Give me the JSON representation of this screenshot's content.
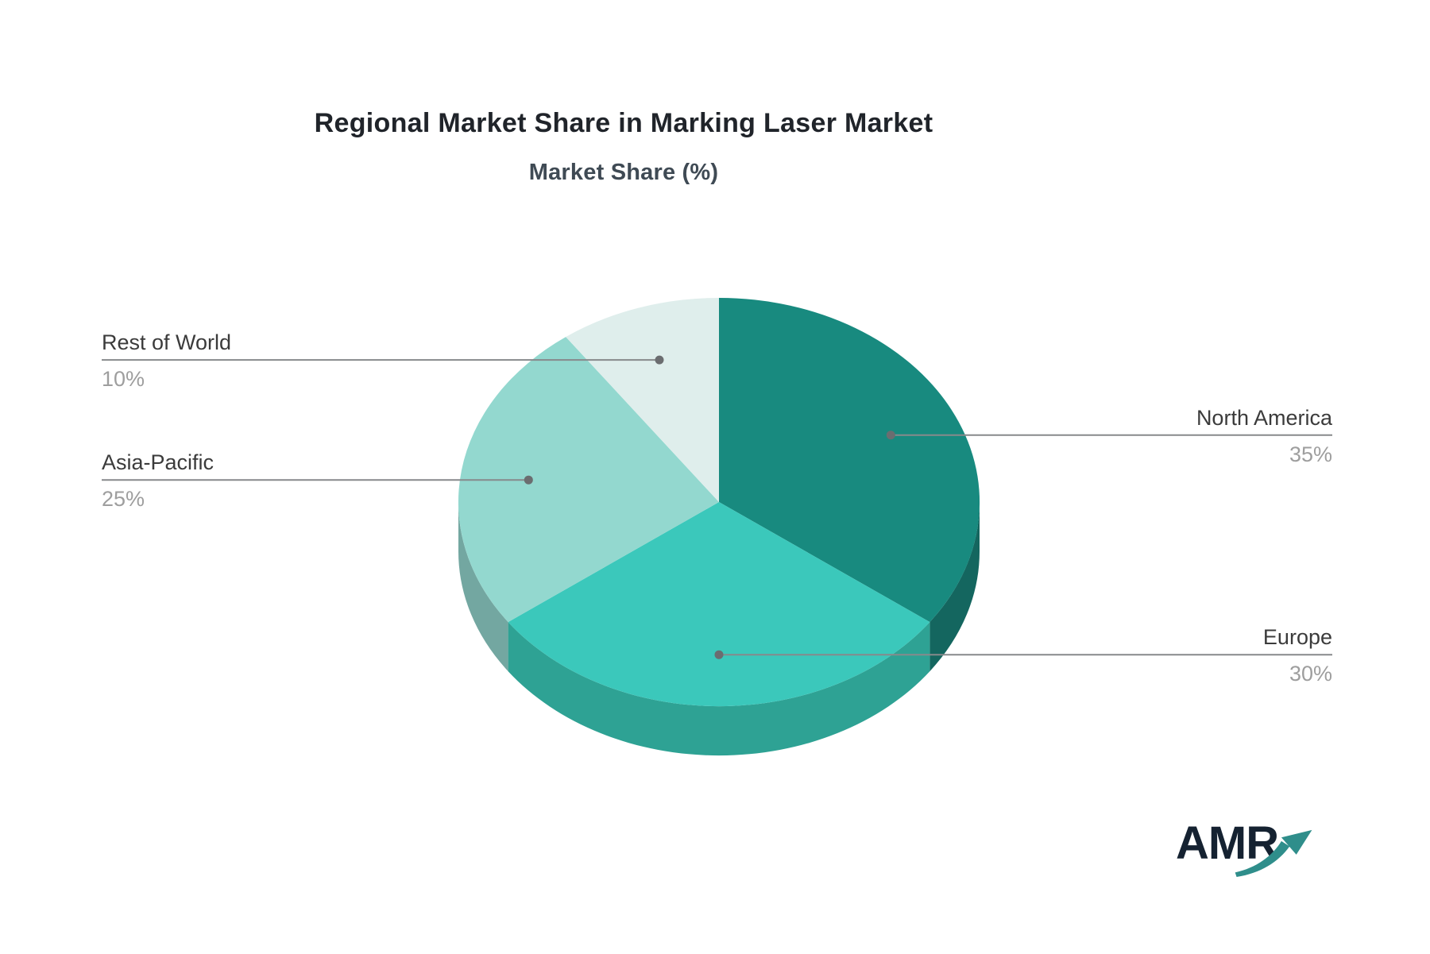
{
  "page": {
    "background": "#FFFFFF"
  },
  "header": {
    "title": "Regional Market Share in Marking Laser Market",
    "subtitle": "Market Share (%)"
  },
  "chart_data": {
    "type": "pie",
    "title": "Regional Market Share in Marking Laser Market",
    "subtitle": "Market Share (%)",
    "effect": "3d",
    "direction": "clockwise",
    "start_angle": "top",
    "value_suffix": "%",
    "total": 100,
    "legend_position": "none",
    "leader_lines": true,
    "slices": [
      {
        "label": "North America",
        "value": 35,
        "display_value": "35%",
        "color": "#188A7F",
        "side_color": "#14665F",
        "label_side": "right"
      },
      {
        "label": "Europe",
        "value": 30,
        "display_value": "30%",
        "color": "#3BC8BB",
        "side_color": "#2EA294",
        "label_side": "right"
      },
      {
        "label": "Asia-Pacific",
        "value": 25,
        "display_value": "25%",
        "color": "#93D8CF",
        "side_color": "#73A7A1",
        "label_side": "left"
      },
      {
        "label": "Rest of World",
        "value": 10,
        "display_value": "10%",
        "color": "#DFEEEC",
        "side_color": "#C9DEDB",
        "label_side": "left"
      }
    ],
    "callout_style": {
      "name_color": "#3B3B3B",
      "value_color": "#9E9E9E",
      "line_color": "#87898B",
      "dot_color": "#6B6D70"
    }
  },
  "logo": {
    "text": "AMR",
    "text_color": "#152231",
    "arrow_color": "#2F8E8B",
    "arrow_icon": "trending-up-arrow"
  }
}
